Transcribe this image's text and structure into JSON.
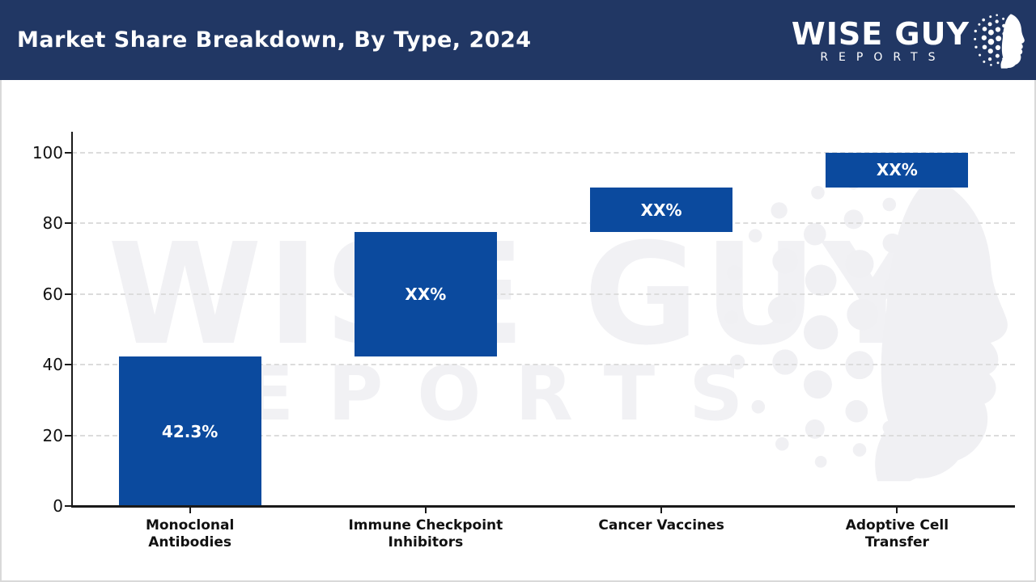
{
  "header": {
    "title": "Market Share Breakdown, By Type, 2024",
    "logo": {
      "line1": "WISE GUY",
      "line2": "REPORTS"
    }
  },
  "watermark": {
    "line1": "WISE GUY",
    "line2": "REPORTS"
  },
  "colors": {
    "header_bg": "#213764",
    "bar": "#0b4a9e",
    "grid": "#dcdcdc",
    "watermark": "#f1f1f4"
  },
  "chart_data": {
    "type": "bar",
    "subtype": "waterfall",
    "title": "Market Share Breakdown, By Type, 2024",
    "xlabel": "",
    "ylabel": "",
    "ylim": [
      0,
      105
    ],
    "yticks": [
      0,
      20,
      40,
      60,
      80,
      100
    ],
    "grid": "horizontal-dashed",
    "legend": "none",
    "bar_color": "#0b4a9e",
    "categories": [
      "Monoclonal Antibodies",
      "Immune Checkpoint Inhibitors",
      "Cancer Vaccines",
      "Adoptive Cell Transfer"
    ],
    "segments": [
      {
        "category": "Monoclonal Antibodies",
        "label_lines": [
          "Monoclonal",
          "Antibodies"
        ],
        "start": 0,
        "end": 42.3,
        "value_label": "42.3%"
      },
      {
        "category": "Immune Checkpoint Inhibitors",
        "label_lines": [
          "Immune Checkpoint",
          "Inhibitors"
        ],
        "start": 42.3,
        "end": 77.5,
        "value_label": "XX%"
      },
      {
        "category": "Cancer Vaccines",
        "label_lines": [
          "Cancer Vaccines"
        ],
        "start": 77.5,
        "end": 90.2,
        "value_label": "XX%"
      },
      {
        "category": "Adoptive Cell Transfer",
        "label_lines": [
          "Adoptive Cell",
          "Transfer"
        ],
        "start": 90.2,
        "end": 100,
        "value_label": "XX%"
      }
    ]
  }
}
